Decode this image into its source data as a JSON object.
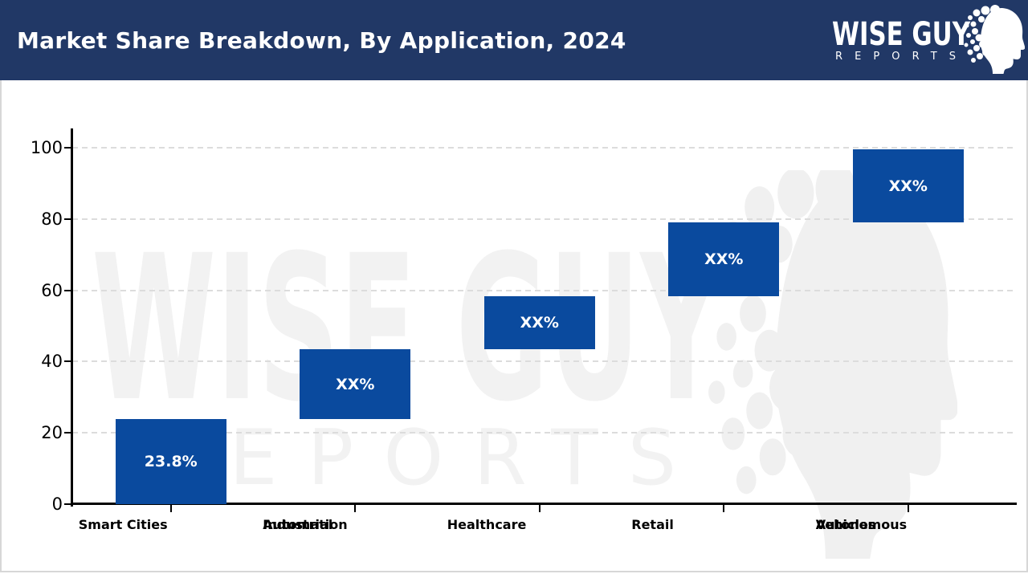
{
  "header": {
    "title": "Market Share Breakdown, By Application, 2024",
    "bg_color": "#213866",
    "logo": {
      "line1": "WISE GUY",
      "line2": "REPORTS"
    }
  },
  "watermark": {
    "line1": "WISE GUY",
    "line2": "REPORTS"
  },
  "chart_data": {
    "type": "bar",
    "variant": "waterfall",
    "title": "Market Share Breakdown, By Application, 2024",
    "categories": [
      "Smart Cities",
      "Industrial Automation",
      "Healthcare",
      "Retail",
      "Autonomous Vehicles"
    ],
    "category_label_lines": [
      [
        "Smart Cities"
      ],
      [
        "Industrial",
        "Automation"
      ],
      [
        "Healthcare"
      ],
      [
        "Retail"
      ],
      [
        "Autonomous",
        "Vehicles"
      ]
    ],
    "series": [
      {
        "name": "Market share (%)",
        "segments": [
          {
            "category": "Smart Cities",
            "from": 0,
            "to": 23.8,
            "label": "23.8%"
          },
          {
            "category": "Industrial Automation",
            "from": 23.8,
            "to": 43.5,
            "label": "XX%"
          },
          {
            "category": "Healthcare",
            "from": 43.5,
            "to": 58.4,
            "label": "XX%"
          },
          {
            "category": "Retail",
            "from": 58.4,
            "to": 79.0,
            "label": "XX%"
          },
          {
            "category": "Autonomous Vehicles",
            "from": 79.0,
            "to": 99.5,
            "label": "XX%"
          }
        ]
      }
    ],
    "ylim": [
      0,
      100
    ],
    "yticks": [
      0,
      20,
      40,
      60,
      80,
      100
    ],
    "xlabel": "",
    "ylabel": "",
    "grid": {
      "horizontal": true,
      "style": "dashed",
      "color": "#dcdcdc"
    },
    "legend": "none",
    "colors": {
      "bar": "#0a4a9e",
      "bar_label": "#ffffff",
      "axis": "#000000",
      "tick_label": "#000000",
      "watermark": "#f2f2f2"
    }
  }
}
